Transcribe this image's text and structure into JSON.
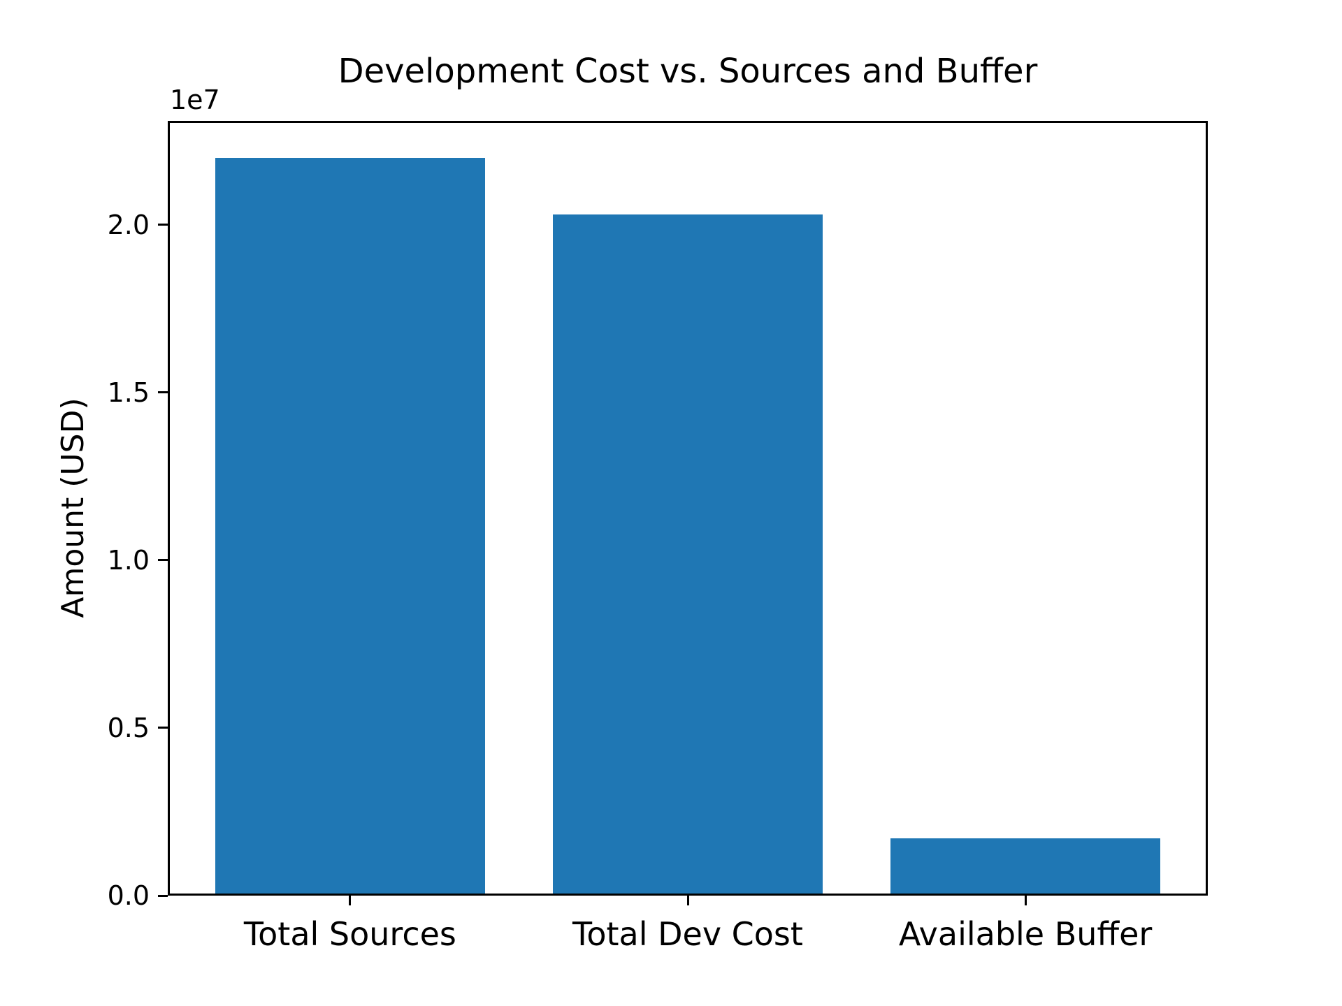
{
  "figure": {
    "background": "#ffffff",
    "axis_color": "#000000"
  },
  "chart_data": {
    "type": "bar",
    "title": "Development Cost vs. Sources and Buffer",
    "xlabel": "",
    "ylabel": "Amount (USD)",
    "y_offset_multiplier": "1e7",
    "categories": [
      "Total Sources",
      "Total Dev Cost",
      "Available Buffer"
    ],
    "values": [
      22000000,
      20300000,
      1700000
    ],
    "ylim": [
      0,
      23100000
    ],
    "yticks": [
      0,
      5000000,
      10000000,
      15000000,
      20000000
    ],
    "ytick_labels": [
      "0.0",
      "0.5",
      "1.0",
      "1.5",
      "2.0"
    ],
    "bar_color": "#1f77b4",
    "bar_width_fraction": 0.8,
    "grid": false,
    "legend": false
  }
}
